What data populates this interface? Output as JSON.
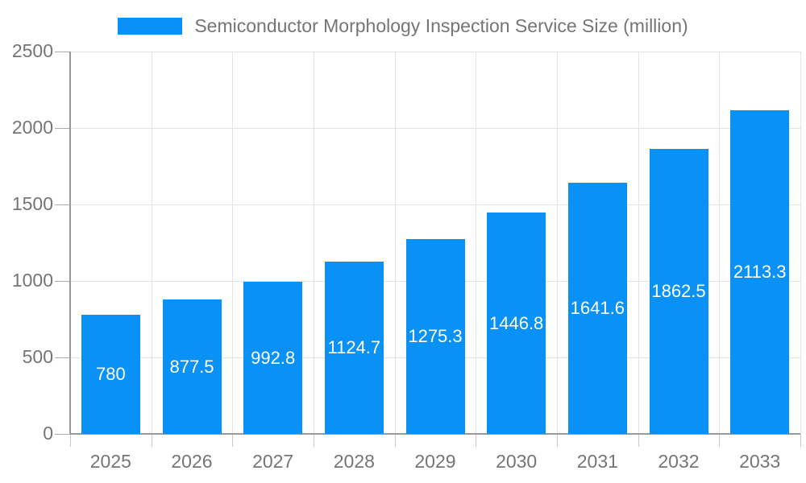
{
  "chart_data": {
    "type": "bar",
    "title": "Semiconductor Morphology Inspection Service Size (million)",
    "categories": [
      "2025",
      "2026",
      "2027",
      "2028",
      "2029",
      "2030",
      "2031",
      "2032",
      "2033"
    ],
    "series": [
      {
        "name": "Semiconductor Morphology Inspection Service Size (million)",
        "values": [
          780,
          877.5,
          992.8,
          1124.7,
          1275.3,
          1446.8,
          1641.6,
          1862.5,
          2113.3
        ]
      }
    ],
    "value_labels": [
      "780",
      "877.5",
      "992.8",
      "1124.7",
      "1275.3",
      "1446.8",
      "1641.6",
      "1862.5",
      "2113.3"
    ],
    "xlabel": "",
    "ylabel": "",
    "ylim": [
      0,
      2500
    ],
    "y_ticks": [
      0,
      500,
      1000,
      1500,
      2000,
      2500
    ],
    "grid": true,
    "legend_position": "top-center",
    "colors": {
      "bar": "#0991f5",
      "grid": "#e4e4e4",
      "axis": "#999999",
      "tick_text": "#757575",
      "value_text": "#ffffff",
      "background": "#ffffff"
    }
  }
}
